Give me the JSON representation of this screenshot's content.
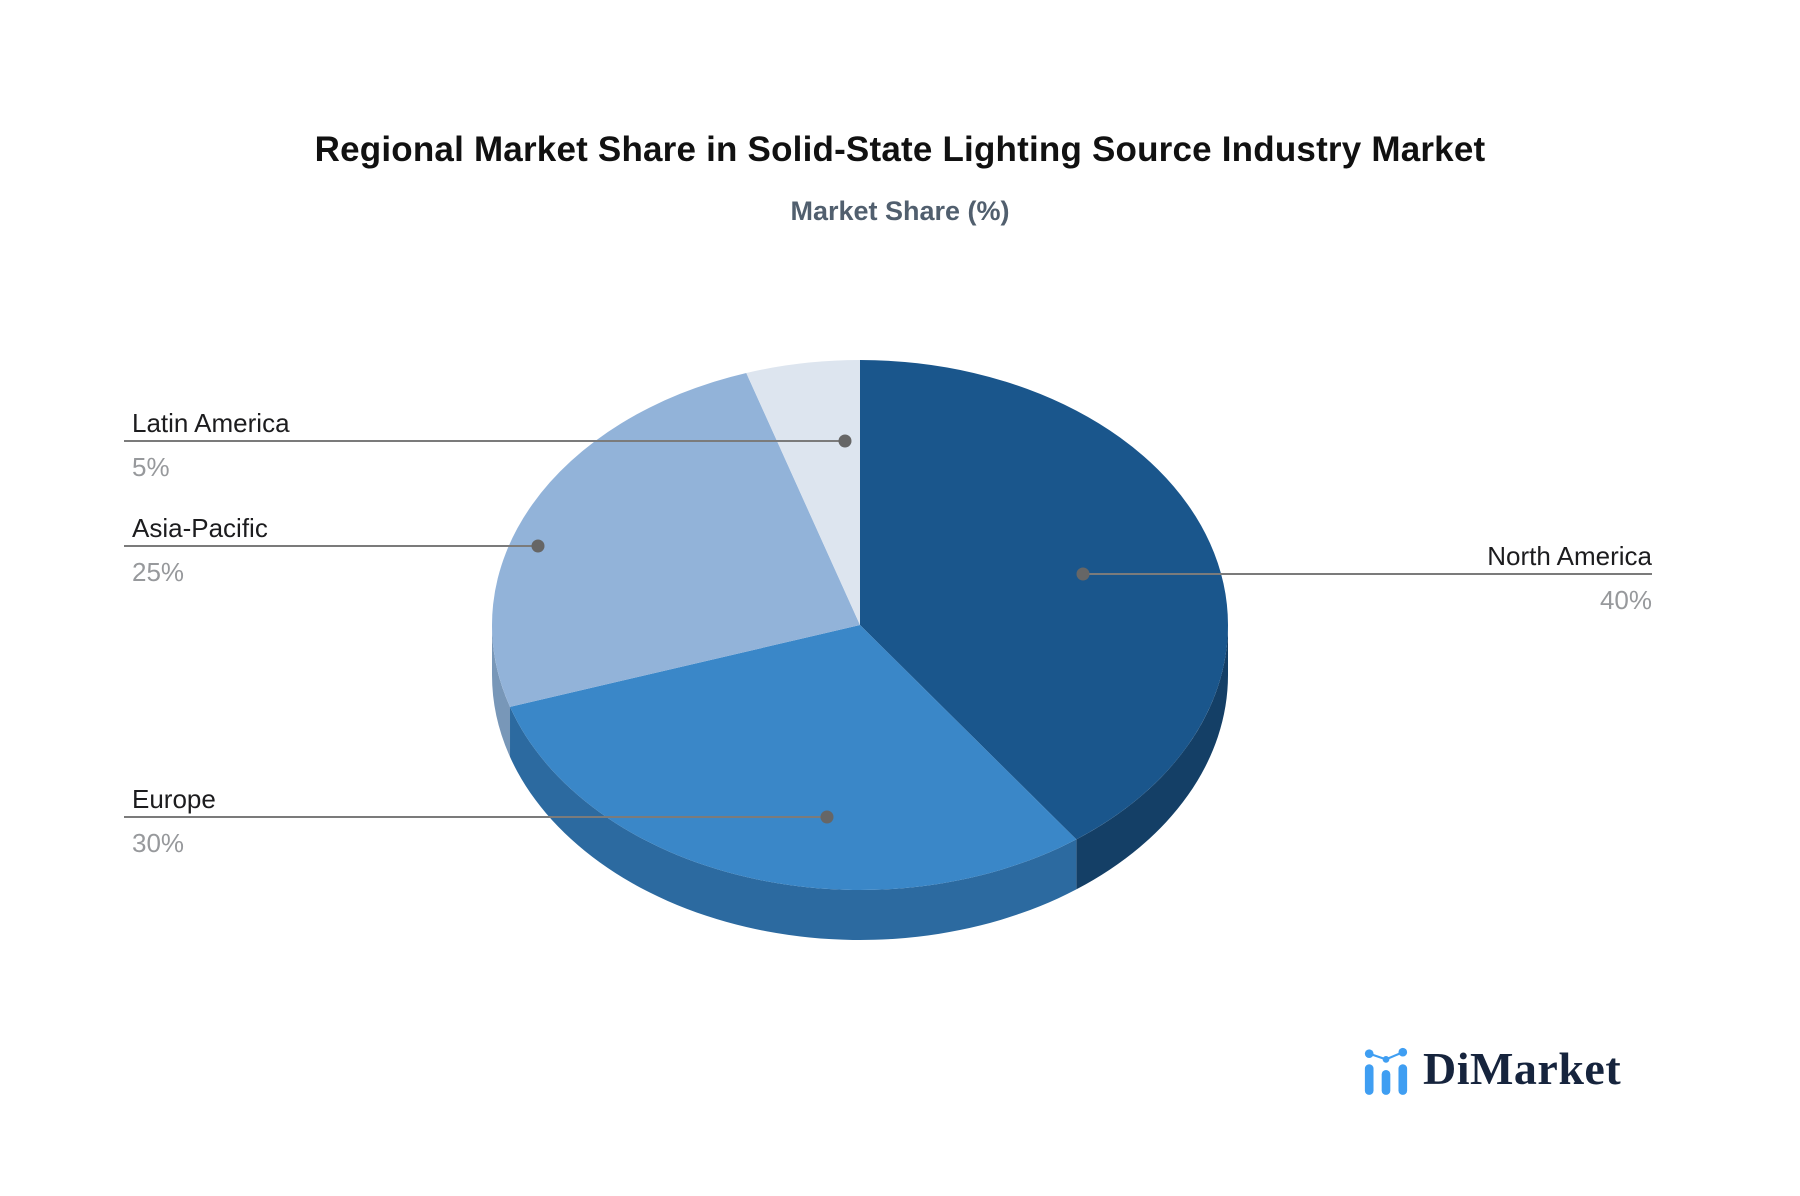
{
  "chart_data": {
    "type": "pie",
    "style": "3d",
    "title": "Regional Market Share in Solid-State Lighting Source Industry Market",
    "subtitle": "Market Share (%)",
    "unit": "%",
    "start_angle_deg": 0,
    "direction": "clockwise",
    "legend": "none",
    "labeling": "leader-lines",
    "leader_line_color": "#7b7b7b",
    "leader_dot_color": "#666666",
    "label_color": "#1c1c1e",
    "value_color": "#97999c",
    "series": [
      {
        "name": "North America",
        "value": 40,
        "display": "40%",
        "color": "#1a568c",
        "side_color": "#143f66",
        "label_side": "right"
      },
      {
        "name": "Europe",
        "value": 30,
        "display": "30%",
        "color": "#3a87c8",
        "side_color": "#2c6aa0",
        "label_side": "left"
      },
      {
        "name": "Asia-Pacific",
        "value": 25,
        "display": "25%",
        "color": "#92b3d9",
        "side_color": "#7897b8",
        "label_side": "left"
      },
      {
        "name": "Latin America",
        "value": 5,
        "display": "5%",
        "color": "#dde5ef",
        "side_color": "#bac7d9",
        "label_side": "left"
      }
    ]
  },
  "logo": {
    "text": "DiMarket",
    "icon": "bar-line-chart-icon",
    "icon_color": "#3f9ef2",
    "text_color": "#16243d"
  }
}
